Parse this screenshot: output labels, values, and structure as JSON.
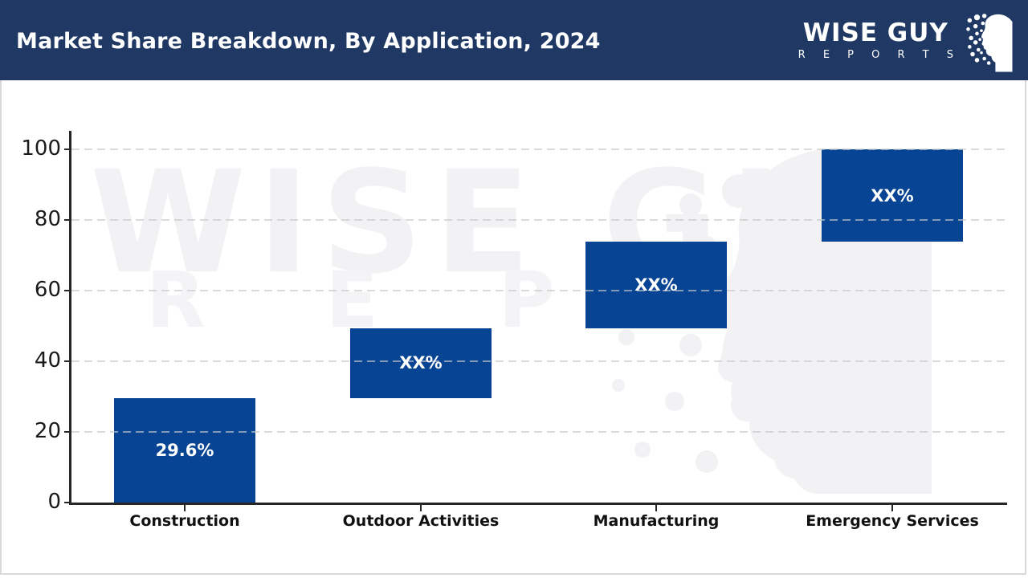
{
  "header": {
    "title": "Market Share Breakdown, By Application, 2024",
    "brand": {
      "line1": "WISE GUY",
      "line2": "R E P O R T S"
    }
  },
  "watermark": {
    "word": "WISE GUY",
    "reports": "R E P O R T S"
  },
  "chart_data": {
    "type": "bar",
    "subtype": "waterfall",
    "title": "Market Share Breakdown, By Application, 2024",
    "categories": [
      "Construction",
      "Outdoor Activities",
      "Manufacturing",
      "Emergency Services"
    ],
    "series": [
      {
        "name": "Market Share (%)",
        "segments": [
          {
            "category": "Construction",
            "start": 0,
            "end": 29.6,
            "label": "29.6%"
          },
          {
            "category": "Outdoor Activities",
            "start": 29.6,
            "end": 49.4,
            "label": "XX%"
          },
          {
            "category": "Manufacturing",
            "start": 49.4,
            "end": 73.8,
            "label": "XX%"
          },
          {
            "category": "Emergency Services",
            "start": 73.8,
            "end": 100,
            "label": "XX%"
          }
        ]
      }
    ],
    "ylim": [
      0,
      100
    ],
    "yticks": [
      0,
      20,
      40,
      60,
      80,
      100
    ],
    "xlabel": "",
    "ylabel": "",
    "grid": "horizontal-dashed",
    "legend": "none",
    "bar_color": "#074493",
    "value_label_color": "#ffffff"
  }
}
